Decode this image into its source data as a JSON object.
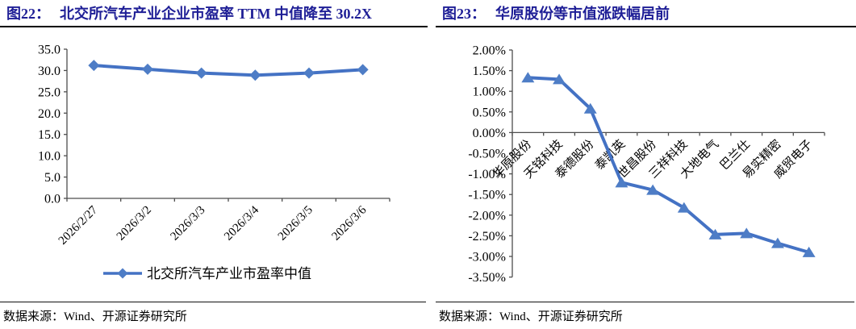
{
  "colors": {
    "series_line": "#4472C4",
    "marker_fill": "#4E7DC6",
    "figure_title": "#1E1E96",
    "axis_line": "#4d4d4d",
    "tick_text": "#000000"
  },
  "figures": [
    {
      "tag": "图22：",
      "title": "北交所汽车产业企业市盈率 TTM 中值降至 30.2X",
      "source": "数据来源：Wind、开源证券研究所",
      "chart_data": {
        "type": "line",
        "title": "北交所汽车产业企业市盈率TTM中值降至30.2X",
        "categories": [
          "2026/2/27",
          "2026/3/2",
          "2026/3/3",
          "2026/3/4",
          "2026/3/5",
          "2026/3/6"
        ],
        "values": [
          31.2,
          30.3,
          29.4,
          28.9,
          29.4,
          30.2
        ],
        "legend": "北交所汽车产业市盈率中值",
        "legend_position": "bottom",
        "ylim": [
          0,
          35
        ],
        "ytick_step": 5,
        "ytick_format": "decimal1",
        "marker": "diamond",
        "grid": false,
        "xlabel": "",
        "ylabel": ""
      }
    },
    {
      "tag": "图23：",
      "title": "华原股份等市值涨跌幅居前",
      "source": "数据来源：Wind、开源证券研究所",
      "chart_data": {
        "type": "line",
        "title": "华原股份等市值涨跌幅居前",
        "categories": [
          "华原股份",
          "天铭科技",
          "泰德股份",
          "泰凯英",
          "世昌股份",
          "三祥科技",
          "大地电气",
          "巴兰仕",
          "易实精密",
          "威贸电子"
        ],
        "values": [
          1.33,
          1.29,
          0.58,
          -1.21,
          -1.39,
          -1.82,
          -2.47,
          -2.44,
          -2.68,
          -2.9
        ],
        "legend_position": "none",
        "ylim": [
          -3.5,
          2.0
        ],
        "ytick_step": 0.5,
        "ytick_format": "percent2",
        "marker": "triangle",
        "grid": false,
        "xlabel": "",
        "ylabel": ""
      }
    }
  ]
}
